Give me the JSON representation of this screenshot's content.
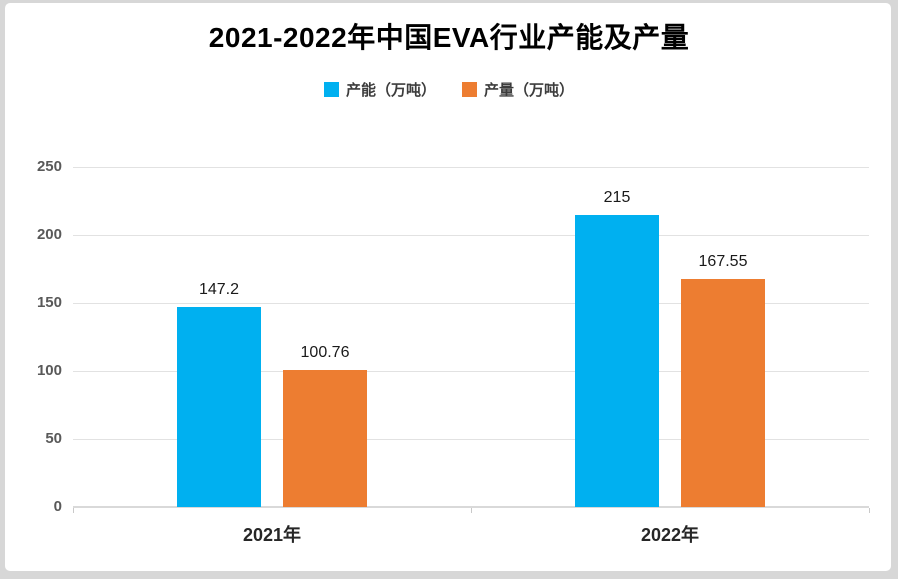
{
  "title": "2021-2022年中国EVA行业产能及产量",
  "chart_data": {
    "type": "bar",
    "title": "2021-2022年中国EVA行业产能及产量",
    "categories": [
      "2021年",
      "2022年"
    ],
    "series": [
      {
        "name": "产能（万吨）",
        "color": "#00b0f0",
        "values": [
          147.2,
          215
        ],
        "labels": [
          "147.2",
          "215"
        ]
      },
      {
        "name": "产量（万吨）",
        "color": "#ed7d31",
        "values": [
          100.76,
          167.55
        ],
        "labels": [
          "100.76",
          "167.55"
        ]
      }
    ],
    "xlabel": "",
    "ylabel": "",
    "ylim": [
      0,
      250
    ],
    "yticks": [
      0,
      50,
      100,
      150,
      200,
      250
    ],
    "ytick_labels": [
      "0",
      "50",
      "100",
      "150",
      "200",
      "250"
    ],
    "grid": true,
    "legend_position": "top"
  }
}
